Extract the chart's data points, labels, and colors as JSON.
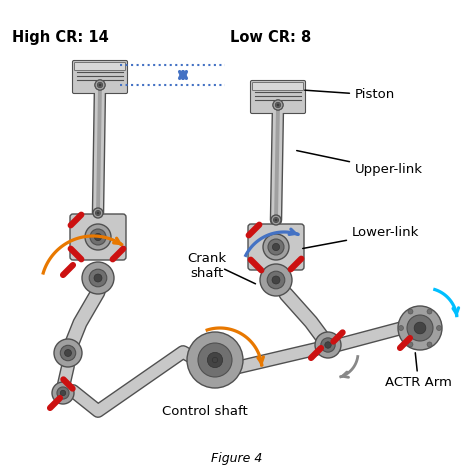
{
  "title": "Figure 4",
  "high_cr_label": "High CR: 14",
  "low_cr_label": "Low CR: 8",
  "labels": {
    "piston": "Piston",
    "upper_link": "Upper-link",
    "lower_link": "Lower-link",
    "crank_shaft": "Crank\nshaft",
    "control_shaft": "Control shaft",
    "actr_arm": "ACTR Arm"
  },
  "bg_color": "#ffffff",
  "arrow_blue": "#4472C4",
  "arrow_orange": "#E87800",
  "arrow_cyan": "#00BFFF",
  "arrow_gray": "#888888",
  "pin_color": "#CC1111",
  "text_color": "#000000",
  "dotted_line_color": "#4472C4",
  "metal_light": "#c8c8c8",
  "metal_mid": "#a0a0a0",
  "metal_dark": "#707070",
  "metal_edge": "#505050",
  "label_fontsize": 9.5,
  "title_fontsize": 9,
  "figsize": [
    4.74,
    4.66
  ],
  "dpi": 100
}
